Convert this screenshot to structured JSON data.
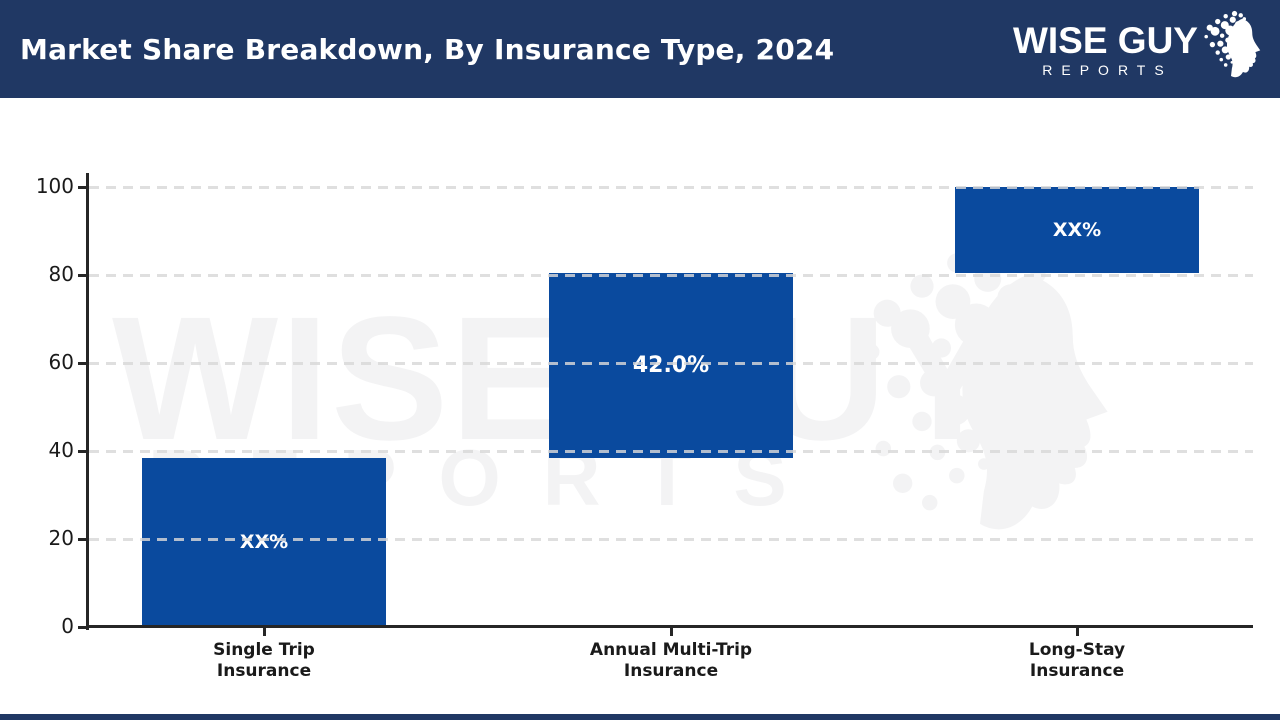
{
  "header": {
    "title": "Market Share Breakdown, By Insurance Type, 2024",
    "logo": {
      "line1": "WISE GUY",
      "line2": "REPORTS"
    }
  },
  "watermark": {
    "line1": "WISE GUY",
    "line2": "REPORTS"
  },
  "footer": {},
  "colors": {
    "header_navy": "#203864",
    "bar_blue": "#0a4a9e",
    "axis": "#262626",
    "tick_text": "#1a1a1a",
    "gridline": "rgba(216,216,216,0.82)",
    "watermark": "#f3f3f4"
  },
  "chart_data": {
    "type": "bar",
    "subtype": "waterfall-percent-breakdown",
    "title": "Market Share Breakdown, By Insurance Type, 2024",
    "categories": [
      "Single Trip\nInsurance",
      "Annual Multi-Trip\nInsurance",
      "Long-Stay\nInsurance"
    ],
    "segments": [
      {
        "category": "Single Trip Insurance",
        "start": 0,
        "end": 38.5,
        "value": 38.5,
        "label": "XX%"
      },
      {
        "category": "Annual Multi-Trip Insurance",
        "start": 38.5,
        "end": 80.5,
        "value": 42.0,
        "label": "42.0%"
      },
      {
        "category": "Long-Stay Insurance",
        "start": 80.5,
        "end": 100,
        "value": 19.5,
        "label": "XX%"
      }
    ],
    "yticks": [
      0,
      20,
      40,
      60,
      80,
      100
    ],
    "ylim": [
      0,
      103
    ],
    "xlabel": "",
    "ylabel": "",
    "grid": "horizontal dashed, drawn above bars",
    "legend": "none",
    "bar_color": "#0a4a9e"
  }
}
